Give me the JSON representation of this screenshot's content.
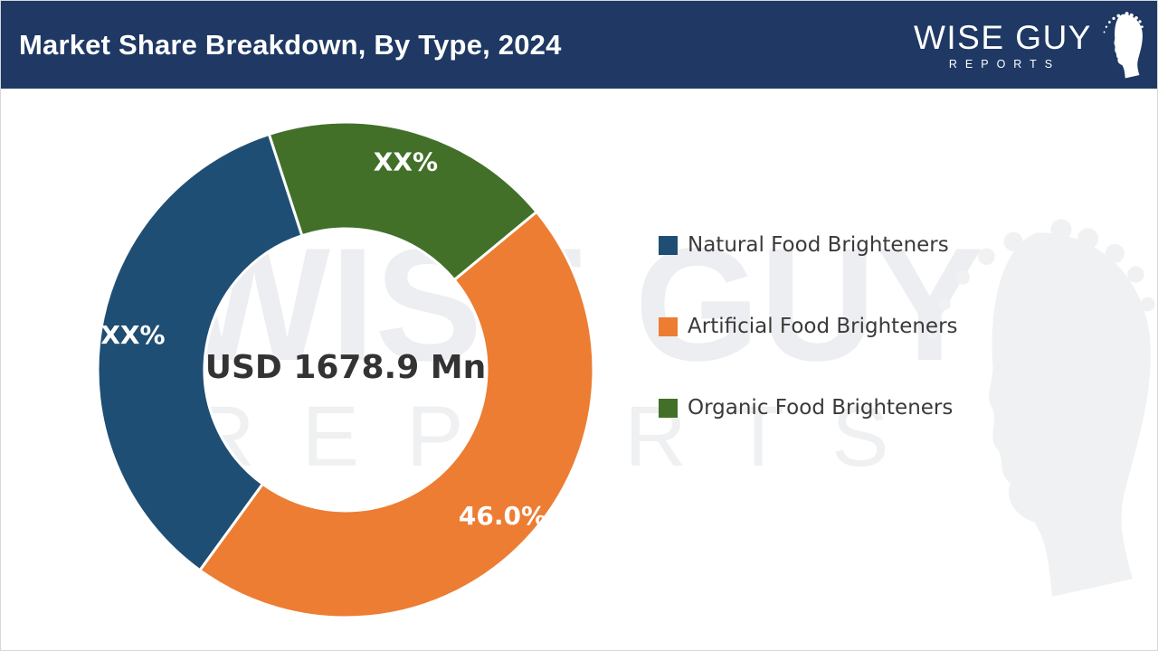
{
  "header": {
    "title": "Market Share Breakdown, By Type, 2024",
    "logo": {
      "line1": "WISE GUY",
      "line2": "REPORTS"
    }
  },
  "watermark": {
    "line1": "WISE GUY",
    "line2": "REPORTS"
  },
  "colors": {
    "header_bg": "#1F3864",
    "center_text": "#333333",
    "legend_text": "#3A3A3A",
    "segment_gap": "#FFFFFF",
    "watermark": "#EDEEF1"
  },
  "chart_data": {
    "type": "donut",
    "title": "Market Share Breakdown, By Type, 2024",
    "center_label": "USD 1678.9 Mn",
    "start_angle_deg": -18,
    "direction": "clockwise",
    "inner_radius_ratio": 0.57,
    "legend_position": "right",
    "segments": [
      {
        "label": "Natural Food Brighteners",
        "value_pct": 35,
        "display_label": "XX%",
        "color": "#1F4E74"
      },
      {
        "label": "Artificial Food Brighteners",
        "value_pct": 46,
        "display_label": "46.0%",
        "color": "#EC7D33"
      },
      {
        "label": "Organic Food Brighteners",
        "value_pct": 19,
        "display_label": "XX%",
        "color": "#427028"
      }
    ],
    "draw_order": [
      "Organic Food Brighteners",
      "Artificial Food Brighteners",
      "Natural Food Brighteners"
    ]
  }
}
